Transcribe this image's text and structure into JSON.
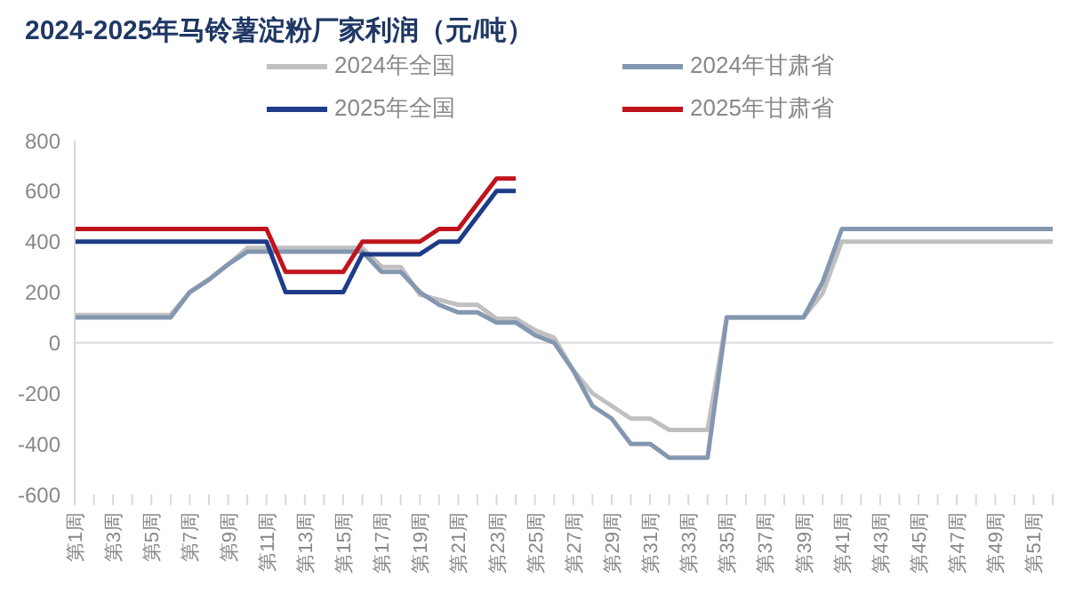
{
  "chart_data": {
    "type": "line",
    "title": "2024-2025年马铃薯淀粉厂家利润（元/吨）",
    "categories": [
      "第1周",
      null,
      "第3周",
      null,
      "第5周",
      null,
      "第7周",
      null,
      "第9周",
      null,
      "第11周",
      null,
      "第13周",
      null,
      "第15周",
      null,
      "第17周",
      null,
      "第19周",
      null,
      "第21周",
      null,
      "第23周",
      null,
      "第25周",
      null,
      "第27周",
      null,
      "第29周",
      null,
      "第31周",
      null,
      "第33周",
      null,
      "第35周",
      null,
      "第37周",
      null,
      "第39周",
      null,
      "第41周",
      null,
      "第43周",
      null,
      "第45周",
      null,
      "第47周",
      null,
      "第49周",
      null,
      "第51周",
      null
    ],
    "series": [
      {
        "name": "2024年全国",
        "color": "#c0c0c0",
        "values": [
          110,
          110,
          110,
          110,
          110,
          110,
          200,
          250,
          310,
          375,
          375,
          375,
          375,
          375,
          375,
          375,
          300,
          300,
          190,
          170,
          150,
          150,
          95,
          95,
          50,
          20,
          -110,
          -200,
          -250,
          -300,
          -300,
          -345,
          -345,
          -345,
          100,
          100,
          100,
          100,
          100,
          195,
          400,
          400,
          400,
          400,
          400,
          400,
          400,
          400,
          400,
          400,
          400,
          400
        ]
      },
      {
        "name": "2024年甘肃省",
        "color": "#8497b0",
        "values": [
          100,
          100,
          100,
          100,
          100,
          100,
          200,
          250,
          310,
          360,
          360,
          360,
          360,
          360,
          360,
          360,
          280,
          280,
          200,
          150,
          120,
          120,
          80,
          80,
          30,
          0,
          -110,
          -250,
          -300,
          -400,
          -400,
          -455,
          -455,
          -455,
          100,
          100,
          100,
          100,
          100,
          240,
          450,
          450,
          450,
          450,
          450,
          450,
          450,
          450,
          450,
          450,
          450,
          450
        ]
      },
      {
        "name": "2025年全国",
        "color": "#1f3c88",
        "values": [
          400,
          400,
          400,
          400,
          400,
          400,
          400,
          400,
          400,
          400,
          400,
          200,
          200,
          200,
          200,
          350,
          350,
          350,
          350,
          400,
          400,
          500,
          600,
          600,
          null,
          null,
          null,
          null,
          null,
          null,
          null,
          null,
          null,
          null,
          null,
          null,
          null,
          null,
          null,
          null,
          null,
          null,
          null,
          null,
          null,
          null,
          null,
          null,
          null,
          null,
          null,
          null
        ]
      },
      {
        "name": "2025年甘肃省",
        "color": "#c0141c",
        "values": [
          450,
          450,
          450,
          450,
          450,
          450,
          450,
          450,
          450,
          450,
          450,
          280,
          280,
          280,
          280,
          400,
          400,
          400,
          400,
          450,
          450,
          550,
          650,
          650,
          null,
          null,
          null,
          null,
          null,
          null,
          null,
          null,
          null,
          null,
          null,
          null,
          null,
          null,
          null,
          null,
          null,
          null,
          null,
          null,
          null,
          null,
          null,
          null,
          null,
          null,
          null,
          null
        ]
      }
    ],
    "ylim": [
      -600,
      800
    ],
    "yticks": [
      -600,
      -400,
      -200,
      0,
      200,
      400,
      600,
      800
    ],
    "ref_lines": [
      {
        "axis": "y",
        "value": 0,
        "color": "#d9d9d9"
      }
    ],
    "grid": false,
    "legend": "top",
    "marker": "none",
    "line_style": "solid"
  }
}
